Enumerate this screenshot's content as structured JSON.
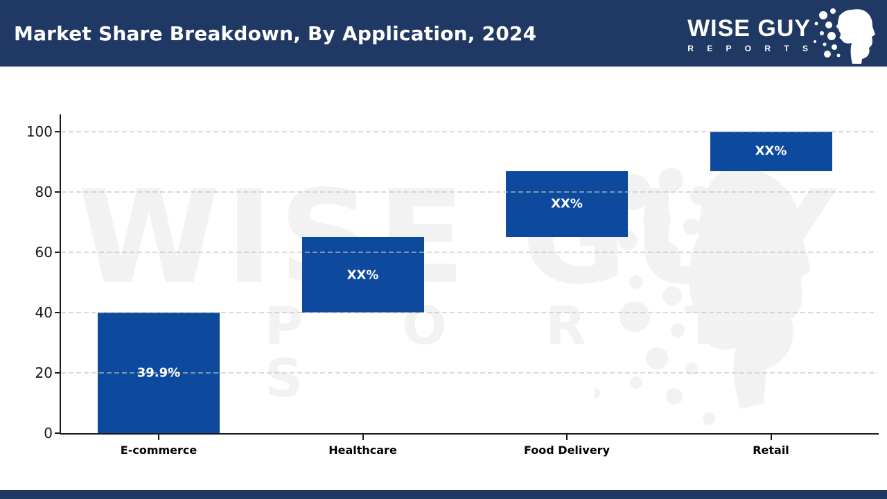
{
  "header": {
    "title": "Market Share Breakdown, By Application, 2024",
    "bg_color": "#1f3864",
    "logo": {
      "line1": "WISE GUY",
      "line2": "R E P O R T S",
      "head_icon": "dotted-head-profile"
    }
  },
  "watermark": {
    "line1": "WISE GUY",
    "line2": "P O R T S",
    "color": "#f2f2f2",
    "head_icon": "dotted-head-profile"
  },
  "footer": {
    "bg_color": "#1f3864"
  },
  "chart_data": {
    "type": "bar",
    "subtype": "waterfall",
    "title": "Market Share Breakdown, By Application, 2024",
    "categories": [
      "E-commerce",
      "Healthcare",
      "Food Delivery",
      "Retail"
    ],
    "segments": [
      {
        "category": "E-commerce",
        "start": 0,
        "end": 39.9,
        "label": "39.9%"
      },
      {
        "category": "Healthcare",
        "start": 40,
        "end": 65,
        "label": "XX%"
      },
      {
        "category": "Food Delivery",
        "start": 65,
        "end": 87,
        "label": "XX%"
      },
      {
        "category": "Retail",
        "start": 87,
        "end": 100,
        "label": "XX%"
      }
    ],
    "yticks": [
      0,
      20,
      40,
      60,
      80,
      100
    ],
    "ylim": [
      0,
      107
    ],
    "xlabel": "",
    "ylabel": "",
    "grid": "horizontal-dashed",
    "grid_over_bars": true,
    "legend": "none",
    "bar_color": "#0d4a9e",
    "bar_label_color": "#ffffff",
    "axis_color": "#1a1a1a",
    "grid_color": "#e0e0e0"
  }
}
